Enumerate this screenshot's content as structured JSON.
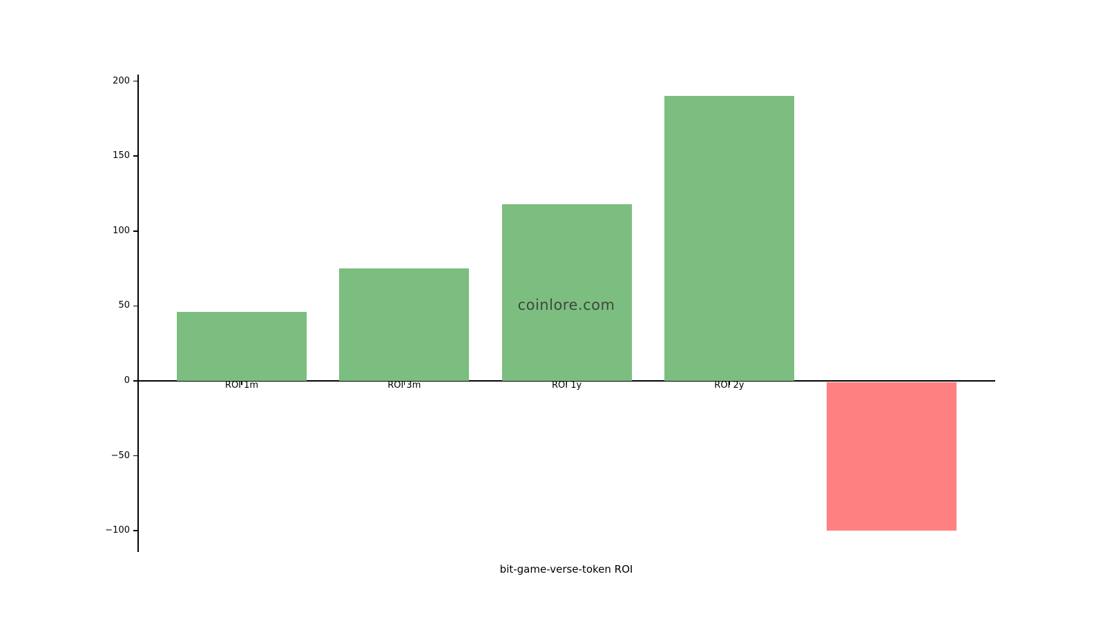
{
  "chart_data": {
    "type": "bar",
    "categories": [
      "ROI 1m",
      "ROI 3m",
      "ROI 1y",
      "ROI 2y",
      ""
    ],
    "values": [
      46,
      75,
      118,
      190,
      -100
    ],
    "bar_colors": [
      "#7cbe80",
      "#7cbe80",
      "#7cbe80",
      "#7cbe80",
      "#ff8080"
    ],
    "yticks": [
      200,
      150,
      100,
      50,
      0,
      -50,
      -100
    ],
    "ytick_labels": [
      "200",
      "150",
      "100",
      "50",
      "0",
      "−50",
      "−100"
    ],
    "ylim": [
      -114.5,
      204.5
    ],
    "grid": false,
    "legend_position": "none",
    "xlabel": "bit-game-verse-token ROI",
    "ylabel": "",
    "title": "",
    "watermark": "coinlore.com"
  },
  "colors": {
    "positive_bar": "#7cbe80",
    "negative_bar": "#ff8080",
    "axis": "#000000",
    "tick_text": "#000000",
    "watermark_text": "#3e473e",
    "background": "#ffffff"
  }
}
